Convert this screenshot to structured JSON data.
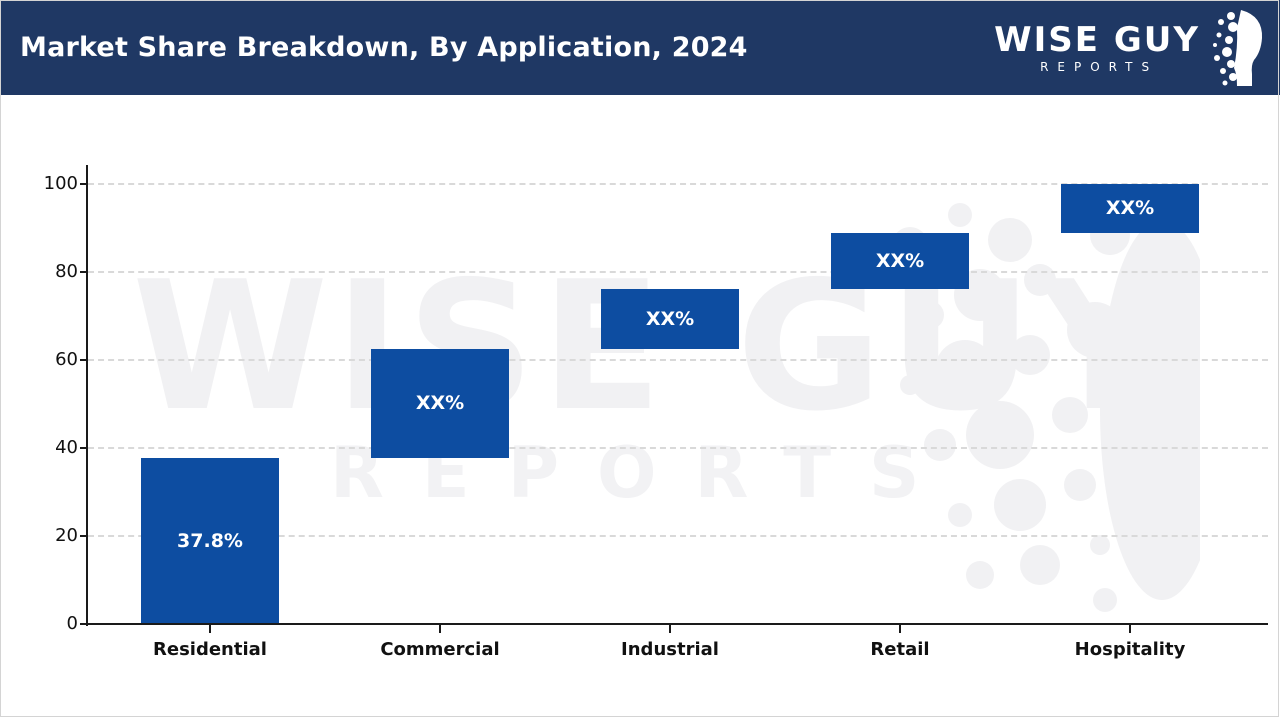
{
  "header": {
    "title": "Market Share Breakdown, By Application, 2024",
    "brand_line1": "WISE GUY",
    "brand_line2": "REPORTS"
  },
  "watermark": {
    "line1": "WISE GUY",
    "line2": "REPORTS"
  },
  "chart_data": {
    "type": "bar",
    "variant": "waterfall",
    "title": "Market Share Breakdown, By Application, 2024",
    "categories": [
      "Residential",
      "Commercial",
      "Industrial",
      "Retail",
      "Hospitality"
    ],
    "segments": [
      {
        "category": "Residential",
        "start": 0,
        "end": 37.8,
        "label": "37.8%"
      },
      {
        "category": "Commercial",
        "start": 37.8,
        "end": 62.6,
        "label": "XX%"
      },
      {
        "category": "Industrial",
        "start": 62.6,
        "end": 76.2,
        "label": "XX%"
      },
      {
        "category": "Retail",
        "start": 76.2,
        "end": 88.9,
        "label": "XX%"
      },
      {
        "category": "Hospitality",
        "start": 88.9,
        "end": 100,
        "label": "XX%"
      }
    ],
    "yticks": [
      0,
      20,
      40,
      60,
      80,
      100
    ],
    "ylim": [
      0,
      100
    ],
    "grid": "horizontal-dashed",
    "legend": "none",
    "colors": {
      "bar": "#0d4da1",
      "header_band": "#1f3864",
      "grid": "#d9d9d9",
      "axis": "#1a1a1a",
      "watermark": "#f1f1f3",
      "bar_label_text": "#ffffff",
      "title_text": "#ffffff"
    }
  }
}
